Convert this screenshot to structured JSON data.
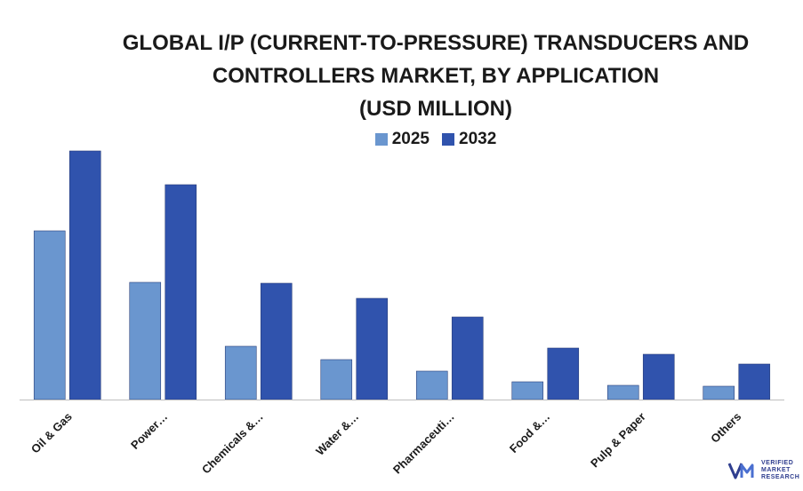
{
  "chart_data": {
    "type": "bar",
    "title_lines": [
      "GLOBAL I/P (CURRENT-TO-PRESSURE) TRANSDUCERS AND",
      "CONTROLLERS MARKET, BY APPLICATION",
      "(USD MILLION)"
    ],
    "categories": [
      "Oil & Gas",
      "Power…",
      "Chemicals &…",
      "Water &…",
      "Pharmaceuti…",
      "Food &…",
      "Pulp & Paper",
      "Others"
    ],
    "series": [
      {
        "name": "2025",
        "color": "#6a96cf",
        "values": [
          190,
          132,
          60,
          45,
          32,
          20,
          16,
          15
        ]
      },
      {
        "name": "2032",
        "color": "#3053ad",
        "values": [
          280,
          242,
          131,
          114,
          93,
          58,
          51,
          40
        ]
      }
    ],
    "ylim": [
      0,
      300
    ],
    "xlabel": "",
    "ylabel": "",
    "grid": false,
    "legend_position": "top-center"
  },
  "logo": {
    "mark": "VMR",
    "text_lines": [
      "VERIFIED",
      "MARKET",
      "RESEARCH"
    ],
    "color": "#2f3e8f"
  }
}
